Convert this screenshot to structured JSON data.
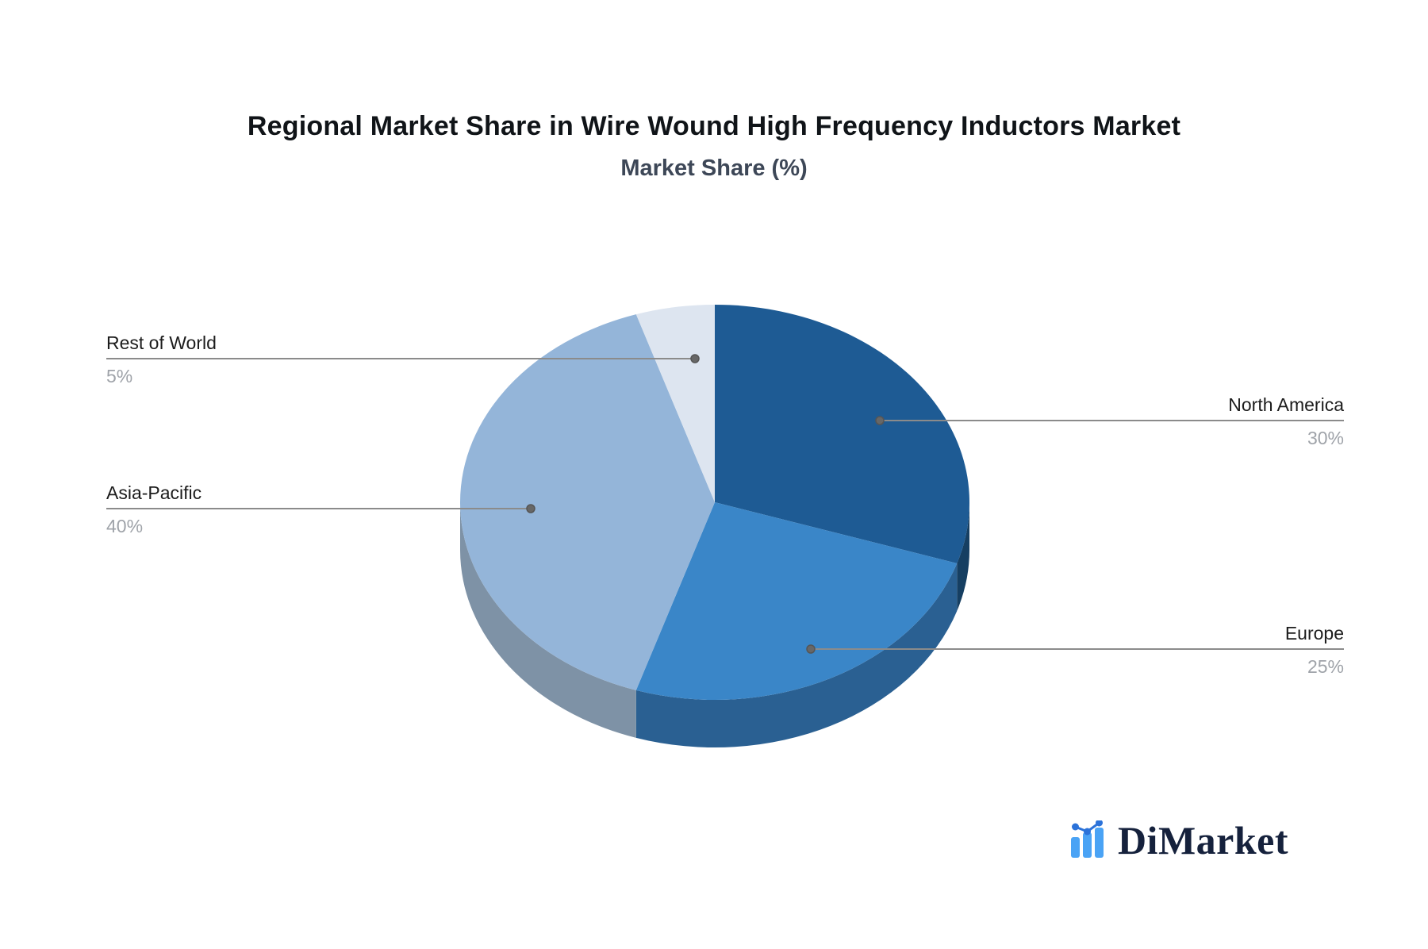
{
  "header": {
    "title": "Regional Market Share in Wire Wound High Frequency Inductors Market",
    "subtitle": "Market Share (%)"
  },
  "chart_data": {
    "type": "pie",
    "style": "3d",
    "title": "Regional Market Share in Wire Wound High Frequency Inductors Market",
    "subtitle": "Market Share (%)",
    "unit": "%",
    "start_angle_deg": 0,
    "direction": "clockwise",
    "legend_position": "callout-labels",
    "slices": [
      {
        "label": "North America",
        "value": 30,
        "display": "30%",
        "color": "#1e5b94",
        "side_color": "#163f62",
        "callout_side": "right"
      },
      {
        "label": "Europe",
        "value": 25,
        "display": "25%",
        "color": "#3a86c8",
        "side_color": "#2a6092",
        "callout_side": "right"
      },
      {
        "label": "Asia-Pacific",
        "value": 40,
        "display": "40%",
        "color": "#94b5d9",
        "side_color": "#7e92a6",
        "callout_side": "left"
      },
      {
        "label": "Rest of World",
        "value": 5,
        "display": "5%",
        "color": "#dde5f0",
        "side_color": "#c5cedd",
        "callout_side": "left"
      }
    ],
    "label_color": "#1c1c1c",
    "value_color": "#9fa3a9",
    "leader_line_color": "#8b8b8b",
    "leader_dot_color": "#676767"
  },
  "branding": {
    "logo_text": "DiMarket",
    "logo_icon": "bar-chart-trend-icon",
    "logo_text_color": "#15213c",
    "logo_bar_color": "#4aa3f5",
    "logo_line_color": "#2b72d9"
  }
}
